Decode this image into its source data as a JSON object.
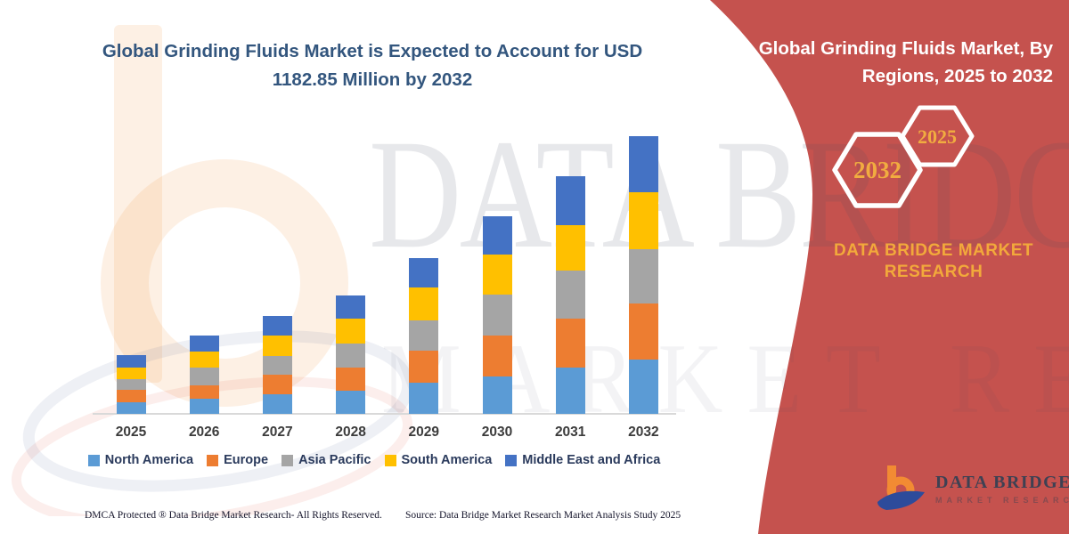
{
  "title": "Global Grinding Fluids Market is Expected to Account for USD 1182.85 Million by 2032",
  "side_panel": {
    "heading": "Global Grinding Fluids Market, By Regions, 2025 to 2032",
    "hexagons": [
      "2032",
      "2025"
    ],
    "brand_text": "DATA BRIDGE MARKET RESEARCH",
    "bg_color": "#C5524E",
    "accent_color": "#F1AC40"
  },
  "watermark": {
    "line1": "DATA BRIDGE",
    "line2": "MARKET RESEARCH"
  },
  "logo": {
    "name": "DATA BRIDGE",
    "subtext": "MARKET RESEARCH"
  },
  "footer": {
    "left": "DMCA Protected ® Data Bridge Market Research-  All Rights Reserved.",
    "right": "Source: Data Bridge Market Research  Market Analysis Study 2025"
  },
  "chart_data": {
    "type": "bar",
    "stacked": true,
    "title": "Global Grinding Fluids Market, By Regions, 2025 to 2032",
    "unit": "USD Million",
    "highlight_total_2032": 1182.85,
    "categories": [
      "2025",
      "2026",
      "2027",
      "2028",
      "2029",
      "2030",
      "2031",
      "2032"
    ],
    "series": [
      {
        "name": "North America",
        "color": "#5B9BD5",
        "values": [
          50.4,
          63.3,
          82.3,
          98.6,
          131.0,
          160.5,
          198.5,
          231.5
        ]
      },
      {
        "name": "Europe",
        "color": "#ED7D31",
        "values": [
          53.1,
          59.5,
          84.5,
          98.6,
          136.6,
          174.6,
          206.1,
          240.2
        ]
      },
      {
        "name": "Asia Pacific",
        "color": "#A5A5A5",
        "values": [
          44.4,
          73.2,
          79.6,
          102.4,
          132.8,
          173.4,
          206.1,
          230.3
        ]
      },
      {
        "name": "South America",
        "color": "#FFC000",
        "values": [
          50.4,
          69.4,
          88.3,
          106.1,
          139.2,
          170.8,
          194.7,
          242.9
        ]
      },
      {
        "name": "Middle East and Africa",
        "color": "#4472C4",
        "values": [
          54.2,
          69.4,
          82.3,
          98.6,
          126.4,
          162.0,
          208.7,
          237.95
        ]
      }
    ],
    "totals_estimated": [
      252.5,
      334.8,
      417.0,
      504.3,
      666.0,
      841.3,
      1014.1,
      1182.85
    ],
    "y_axis_visible": false,
    "grid": false,
    "legend_position": "bottom"
  }
}
